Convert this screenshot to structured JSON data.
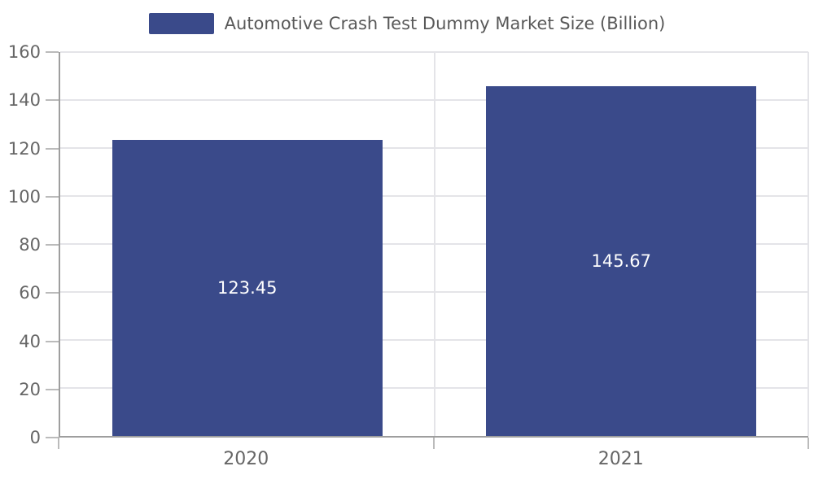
{
  "chart_data": {
    "type": "bar",
    "categories": [
      "2020",
      "2021"
    ],
    "series": [
      {
        "name": "Automotive Crash Test Dummy Market Size (Billion)",
        "values": [
          123.45,
          145.67
        ],
        "data_labels": [
          "123.45",
          "145.67"
        ]
      }
    ],
    "title": "",
    "xlabel": "",
    "ylabel": "",
    "ylim": [
      0,
      160
    ],
    "yticks": [
      0,
      20,
      40,
      60,
      80,
      100,
      120,
      140,
      160
    ],
    "grid": true,
    "legend_position": "top",
    "bar_width_fraction": 0.723
  },
  "colors": {
    "bar": "#3A4A8A",
    "bar_label": "#FFFFFF",
    "legend_text": "#595959",
    "axis_text": "#666666",
    "axis_line": "#9E9E9E",
    "grid": "#E4E4E8",
    "tick": "#BBBBBB",
    "background": "#FFFFFF"
  }
}
